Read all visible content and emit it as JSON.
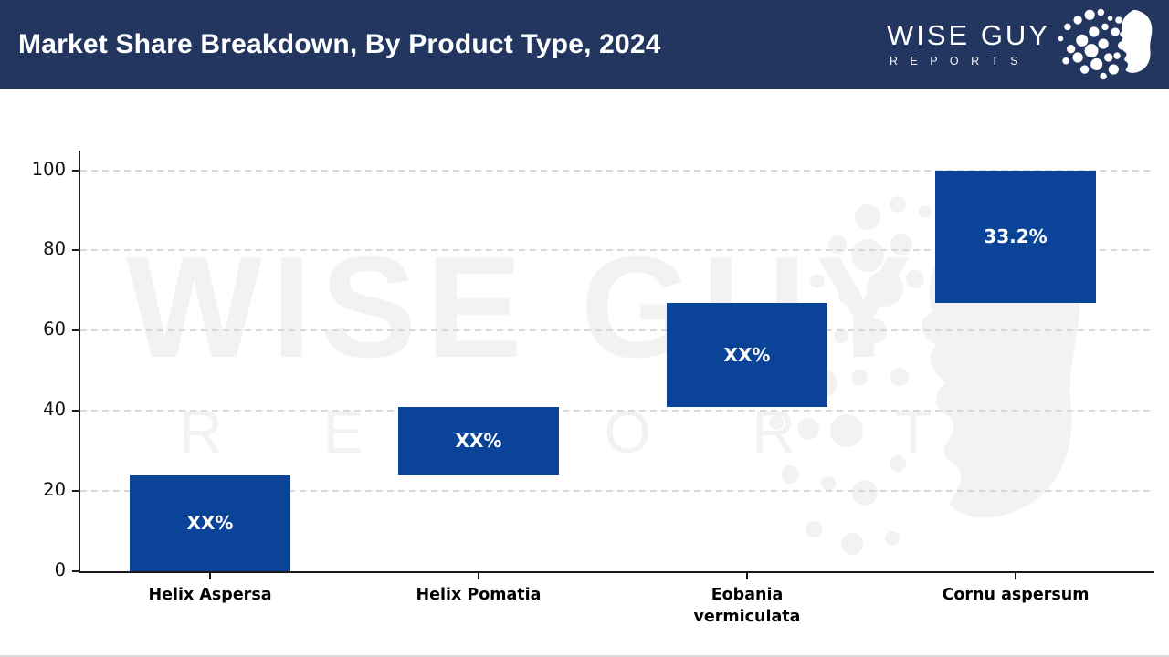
{
  "header": {
    "title": "Market Share Breakdown, By Product Type, 2024",
    "logo": {
      "name": "WISE GUY",
      "sub": "R E P O R T S"
    }
  },
  "watermark": {
    "name": "WISE GUY",
    "sub": "R E P O R T S"
  },
  "colors": {
    "header_bg": "#22365f",
    "bar_fill": "#0b4398",
    "bar_label": "#ffffff",
    "axis": "#1a1a1a",
    "grid": "#d8d8d8",
    "tick_label": "#111111",
    "x_label": "#000000",
    "watermark": "#f2f2f3"
  },
  "chart_data": {
    "type": "bar",
    "subtype": "waterfall",
    "title": "Market Share Breakdown, By Product Type, 2024",
    "categories": [
      "Helix Aspersa",
      "Helix Pomatia",
      "Eobania\nvermiculata",
      "Cornu aspersum"
    ],
    "series": [
      {
        "name": "Market share (%)",
        "segments": [
          {
            "category": "Helix Aspersa",
            "start": 0,
            "end": 24,
            "label": "XX%"
          },
          {
            "category": "Helix Pomatia",
            "start": 24,
            "end": 41,
            "label": "XX%"
          },
          {
            "category": "Eobania vermiculata",
            "start": 41,
            "end": 66.8,
            "label": "XX%"
          },
          {
            "category": "Cornu aspersum",
            "start": 66.8,
            "end": 100,
            "label": "33.2%"
          }
        ]
      }
    ],
    "xlabel": "",
    "ylabel": "",
    "ylim": [
      0,
      100
    ],
    "yticks": [
      0,
      20,
      40,
      60,
      80,
      100
    ],
    "grid": "horizontal-dashed",
    "legend": "none"
  }
}
